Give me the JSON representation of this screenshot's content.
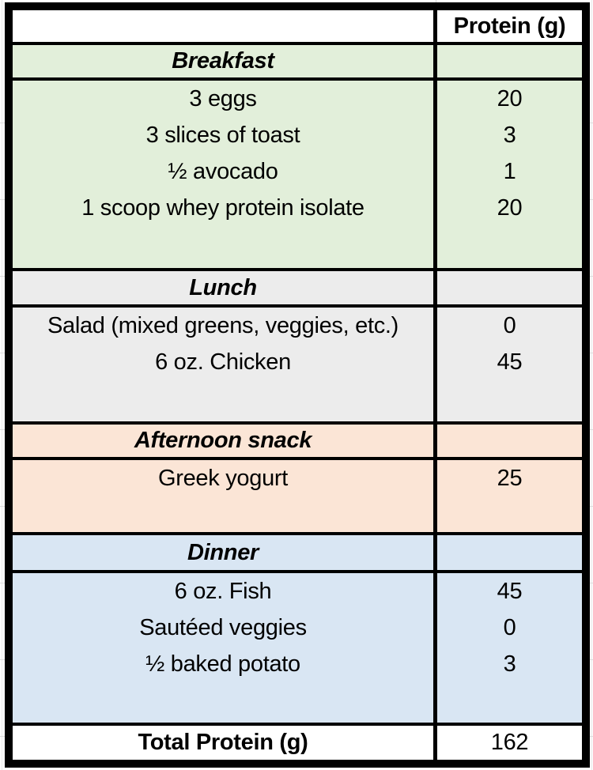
{
  "page": {
    "background": "#ffffff",
    "gridline_color": "#dcdcdc",
    "border_color": "#000000"
  },
  "table": {
    "header": {
      "item_label": "",
      "protein_label": "Protein (g)"
    },
    "sections": [
      {
        "name": "Breakfast",
        "bg": "#e2efda",
        "rows": [
          {
            "item": "3 eggs",
            "protein": "20"
          },
          {
            "item": "3 slices of toast",
            "protein": "3"
          },
          {
            "item": "½ avocado",
            "protein": "1"
          },
          {
            "item": "1 scoop whey protein isolate",
            "protein": "20"
          }
        ]
      },
      {
        "name": "Lunch",
        "bg": "#ececec",
        "rows": [
          {
            "item": "Salad (mixed greens, veggies, etc.)",
            "protein": "0"
          },
          {
            "item": "6 oz. Chicken",
            "protein": "45"
          }
        ]
      },
      {
        "name": "Afternoon snack",
        "bg": "#fbe5d6",
        "rows": [
          {
            "item": "Greek yogurt",
            "protein": "25"
          }
        ]
      },
      {
        "name": "Dinner",
        "bg": "#d9e6f3",
        "rows": [
          {
            "item": "6 oz. Fish",
            "protein": "45"
          },
          {
            "item": "Sautéed veggies",
            "protein": "0"
          },
          {
            "item": "½ baked potato",
            "protein": "3"
          }
        ]
      }
    ],
    "total": {
      "label": "Total Protein (g)",
      "value": "162"
    }
  }
}
